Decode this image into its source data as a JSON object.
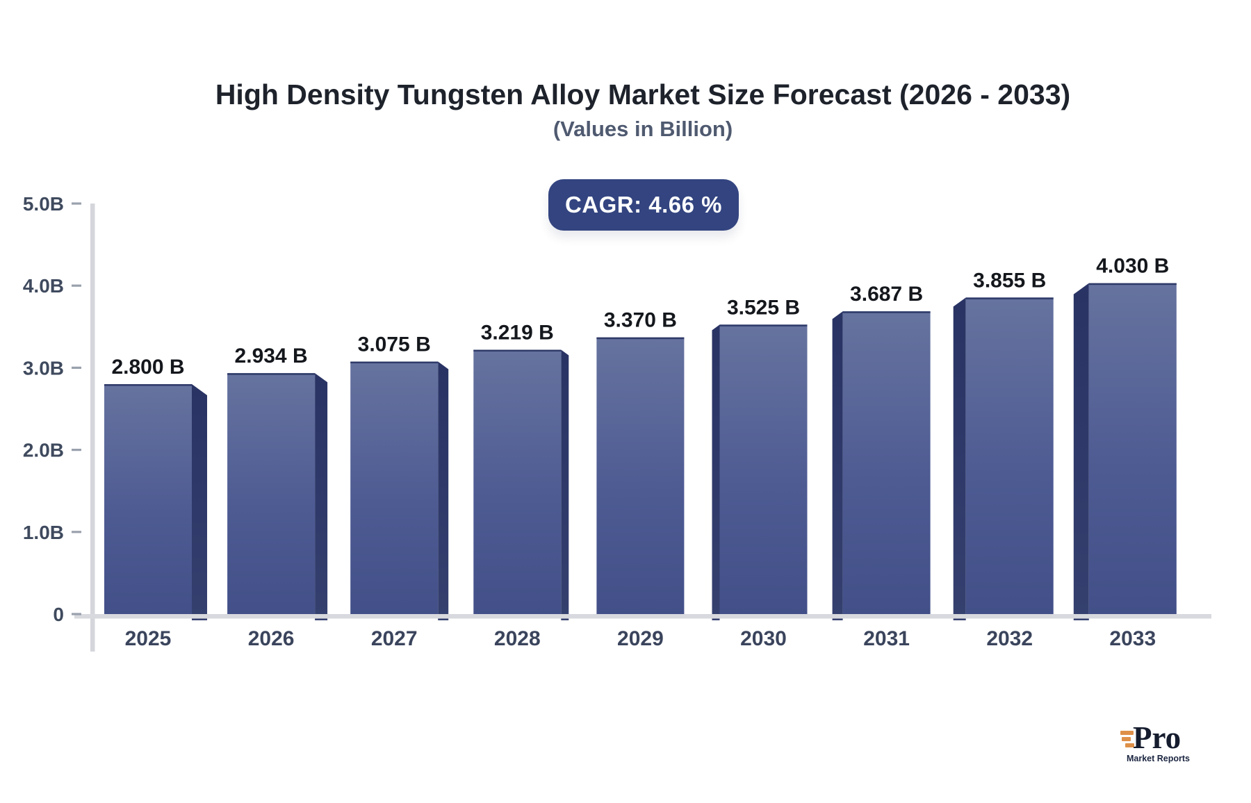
{
  "header": {
    "title": "High Density Tungsten Alloy Market Size Forecast (2026 - 2033)",
    "subtitle": "(Values in Billion)",
    "cagr_label": "CAGR: 4.66 %"
  },
  "chart_data": {
    "type": "bar",
    "title": "High Density Tungsten Alloy Market Size Forecast (2026 - 2033)",
    "subtitle": "(Values in Billion)",
    "cagr": "4.66 %",
    "categories": [
      "2025",
      "2026",
      "2027",
      "2028",
      "2029",
      "2030",
      "2031",
      "2032",
      "2033"
    ],
    "values": [
      2.8,
      2.934,
      3.075,
      3.219,
      3.37,
      3.525,
      3.687,
      3.855,
      4.03
    ],
    "bar_labels": [
      "2.800 B",
      "2.934 B",
      "3.075 B",
      "3.219 B",
      "3.370 B",
      "3.525 B",
      "3.687 B",
      "3.855 B",
      "4.030 B"
    ],
    "unit": "Billion",
    "xlabel": "",
    "ylabel": "",
    "ylim": [
      0,
      5
    ],
    "ytick_labels": [
      "5.0B",
      "4.0B",
      "3.0B",
      "2.0B",
      "1.0B",
      "0"
    ],
    "ytick_values": [
      5,
      4,
      3,
      2,
      1,
      0
    ],
    "grid": false,
    "legend": null,
    "style_3d": true,
    "colors": {
      "bar_face_top": "#66739f",
      "bar_face_mid": "#4e5b93",
      "bar_face_bottom": "#424f88",
      "bar_top_edge": "#2e3a68",
      "bar_side_dark": "#293364",
      "bar_side_dark2": "#35406f",
      "axis_line": "#d5d6dc",
      "baseline_band": "#d8d9de",
      "tick_dash": "#9aa1ad",
      "tick_text": "#3f4a5e",
      "xlabel_text": "#3a445c",
      "value_text": "#14171c",
      "badge_bg": "#334480",
      "badge_text": "#ffffff"
    }
  },
  "logo": {
    "name": "Pro",
    "tagline": "Market Reports",
    "accent": "#de9049",
    "text_color": "#151c2e"
  }
}
